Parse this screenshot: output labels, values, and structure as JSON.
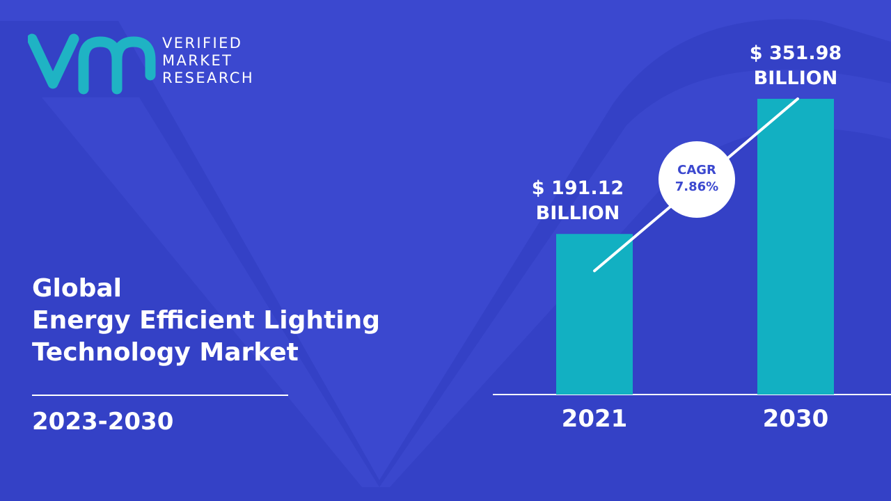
{
  "brand": {
    "line1": "VERIFIED",
    "line2": "MARKET",
    "line3": "RESEARCH",
    "logo_color": "#1fb3c4"
  },
  "title": {
    "line1": "Global",
    "line2": "Energy Efficient Lighting",
    "line3": "Technology Market"
  },
  "period": "2023-2030",
  "colors": {
    "background": "#3b48cf",
    "bar": "#12b0c2",
    "text": "#ffffff",
    "cagr_text": "#3b48cf"
  },
  "chart_data": {
    "type": "bar",
    "categories": [
      "2021",
      "2030"
    ],
    "values": [
      191.12,
      351.98
    ],
    "value_labels": [
      [
        "$ 191.12",
        "BILLION"
      ],
      [
        "$ 351.98",
        "BILLION"
      ]
    ],
    "ylim": [
      0,
      400
    ],
    "grid": false,
    "annotation": {
      "label": "CAGR",
      "value": "7.86%"
    }
  }
}
